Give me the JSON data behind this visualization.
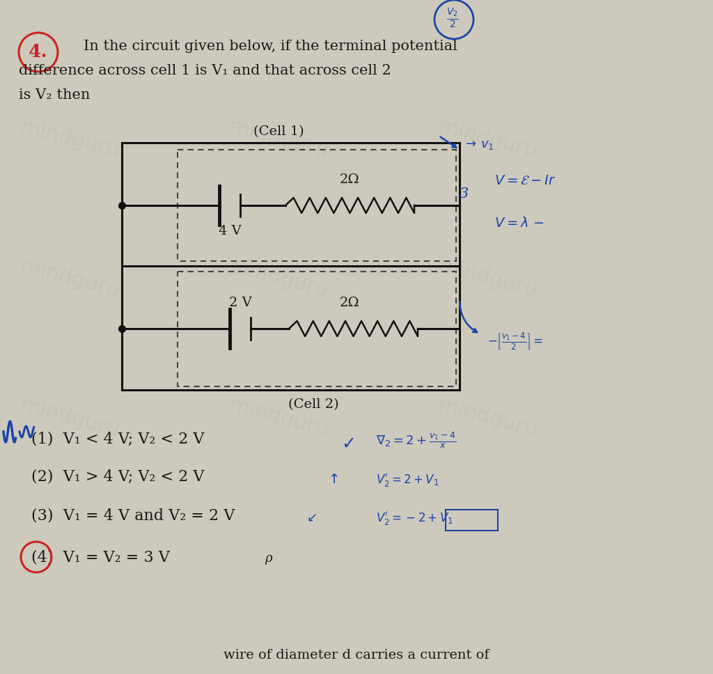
{
  "bg_color": "#c8c8c8",
  "paper_color": "#d4d0c8",
  "text_color": "#1a1a1a",
  "circuit_color": "#111111",
  "dashed_color": "#444444",
  "blue": "#1a44aa",
  "red": "#cc2222",
  "question_number": "4.",
  "q_text_line1": "In the circuit given below, if the terminal potential",
  "q_text_line2": "difference across cell 1 is V₁ and that across cell 2",
  "q_text_line3": "is V₂ then",
  "cell1_label": "(Cell 1)",
  "cell2_label": "(Cell 2)",
  "cell1_emf": "4 V",
  "cell1_r": "2Ω",
  "cell2_emf": "2 V",
  "cell2_r": "2Ω",
  "opt1": "(1)  V₁ < 4 V; V₂ < 2 V",
  "opt2": "(2)  V₁ > 4 V; V₂ < 2 V",
  "opt3": "(3)  V₁ = 4 V and V₂ = 2 V",
  "opt4": "(4)  V₁ = V₂ = 3 V",
  "bottom_text": "wire of diameter d carries a current of"
}
